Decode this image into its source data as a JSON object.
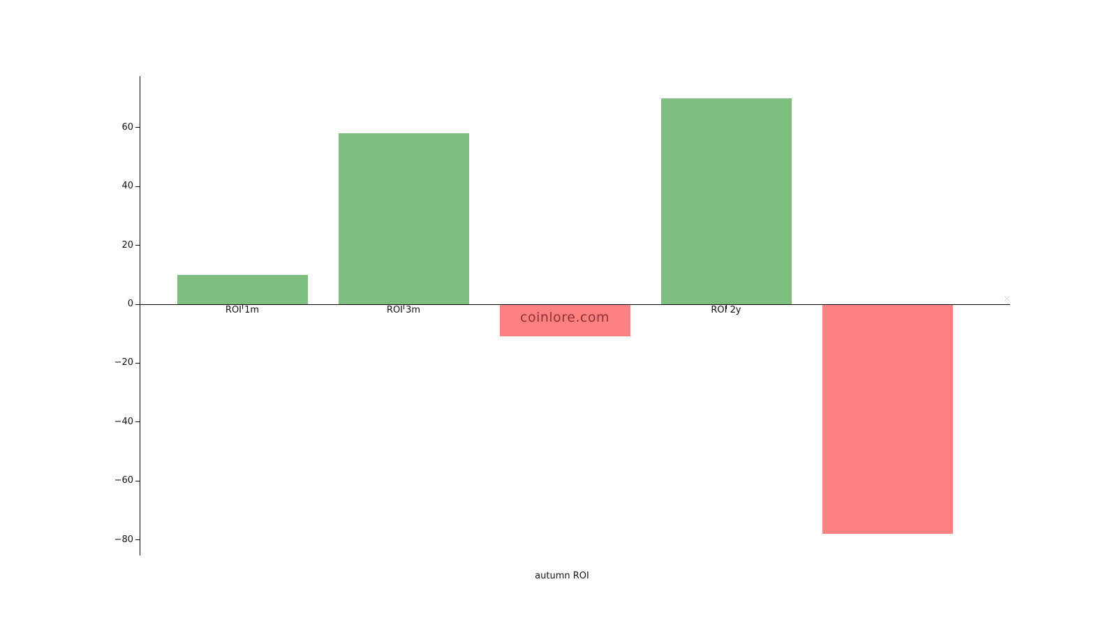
{
  "watermark": {
    "text": "coinlore.com",
    "color": "#913137"
  },
  "axis_end_mark": {
    "text": "×"
  },
  "chart_data": {
    "type": "bar",
    "categories": [
      "ROI 1m",
      "ROI 3m",
      "",
      "ROI 2y",
      ""
    ],
    "category_labels_visible": [
      true,
      true,
      false,
      true,
      false
    ],
    "values": [
      10,
      58,
      -11,
      70,
      -78
    ],
    "title": "",
    "xlabel": "autumn ROI",
    "ylabel": "",
    "yticks": [
      60,
      40,
      20,
      0,
      -20,
      -40,
      -60,
      -80
    ],
    "ylim": [
      -85.4,
      77.4
    ],
    "grid": false,
    "legend": null,
    "colors": {
      "positive": "#7dbd7e",
      "negative": "#fc8181"
    },
    "bar_label_note_colors": {
      "tick": "#000000",
      "text": "#111111"
    }
  }
}
